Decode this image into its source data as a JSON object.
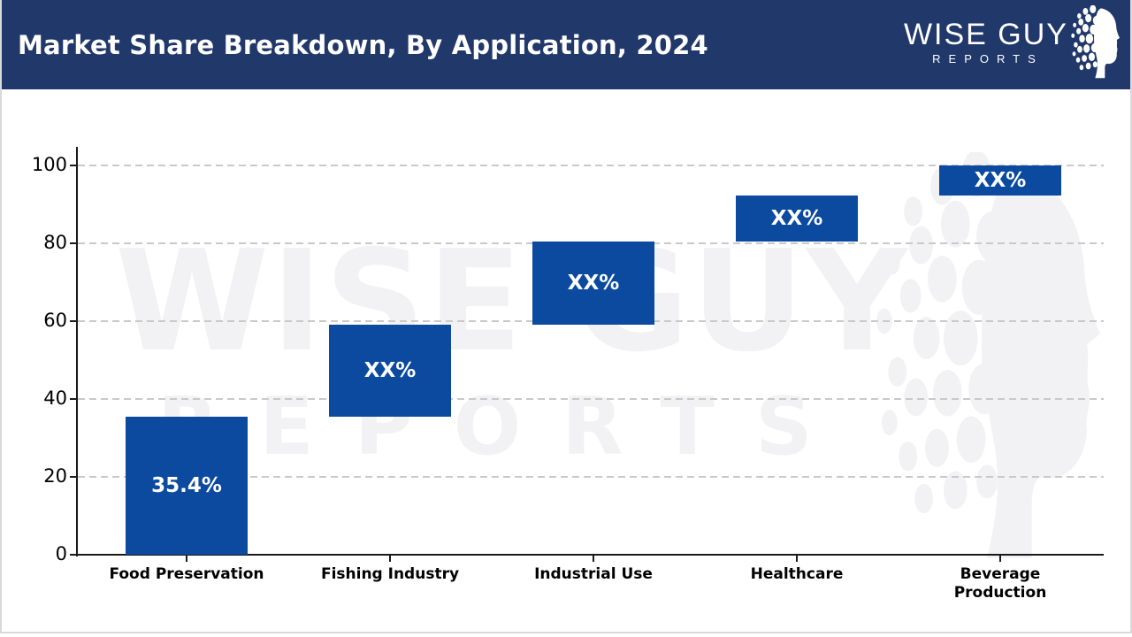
{
  "header": {
    "title": "Market Share Breakdown, By Application, 2024",
    "logo": {
      "name": "WISE GUY",
      "subtitle": "REPORTS"
    }
  },
  "watermark": {
    "line1": "WISE GUY",
    "line2": "REPORTS"
  },
  "chart_data": {
    "type": "bar",
    "subtype": "floating-waterfall",
    "title": "Market Share Breakdown, By Application, 2024",
    "categories": [
      "Food Preservation",
      "Fishing Industry",
      "Industrial Use",
      "Healthcare",
      "Beverage Production"
    ],
    "bars": [
      {
        "category": "Food Preservation",
        "start": 0,
        "end": 35.4,
        "label": "35.4%"
      },
      {
        "category": "Fishing Industry",
        "start": 35.4,
        "end": 59.1,
        "label": "XX%"
      },
      {
        "category": "Industrial Use",
        "start": 59.1,
        "end": 80.5,
        "label": "XX%"
      },
      {
        "category": "Healthcare",
        "start": 80.5,
        "end": 92.3,
        "label": "XX%"
      },
      {
        "category": "Beverage Production",
        "start": 92.3,
        "end": 100,
        "label": "XX%"
      }
    ],
    "xlabel": "",
    "ylabel": "",
    "yticks": [
      0,
      20,
      40,
      60,
      80,
      100
    ],
    "ylim": [
      0,
      104
    ],
    "grid": "horizontal-dashed",
    "legend": "none",
    "bar_color": "#0b4a9e",
    "bar_label_color": "#ffffff",
    "axis_color": "#1a1a1a",
    "gridline_color": "#c9c9c9",
    "header_color": "#21386b",
    "watermark_color": "#f2f2f4"
  }
}
